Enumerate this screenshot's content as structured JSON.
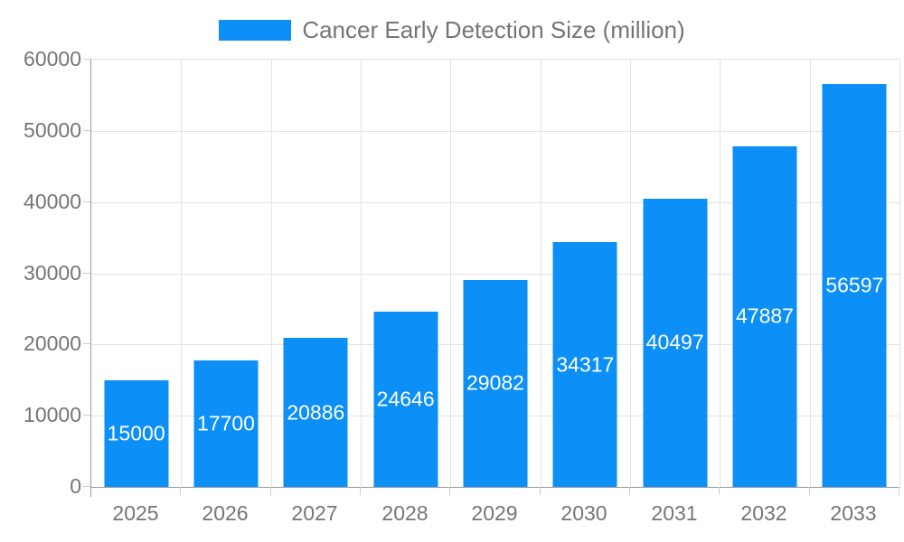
{
  "chart_data": {
    "type": "bar",
    "title": "Cancer Early Detection Size (million)",
    "categories": [
      "2025",
      "2026",
      "2027",
      "2028",
      "2029",
      "2030",
      "2031",
      "2032",
      "2033"
    ],
    "values": [
      15000,
      17700,
      20886,
      24646,
      29082,
      34317,
      40497,
      47887,
      56597
    ],
    "series": [
      {
        "name": "Cancer Early Detection Size (million)",
        "values": [
          15000,
          17700,
          20886,
          24646,
          29082,
          34317,
          40497,
          47887,
          56597
        ]
      }
    ],
    "xlabel": "",
    "ylabel": "",
    "ylim": [
      0,
      60000
    ],
    "ytick_step": 10000,
    "ytick_labels": [
      "0",
      "10000",
      "20000",
      "30000",
      "40000",
      "50000",
      "60000"
    ],
    "grid": true,
    "legend_position": "top",
    "value_labels_position": "inside-center"
  },
  "legend": {
    "label": "Cancer Early Detection Size (million)"
  },
  "colors": {
    "bar": "#0d8ff8",
    "grid": "#e3e3e3",
    "axis": "#999999",
    "tick": "#cccccc",
    "axis_text": "#757575",
    "value_label_text": "#ffffff",
    "background": "#ffffff"
  }
}
